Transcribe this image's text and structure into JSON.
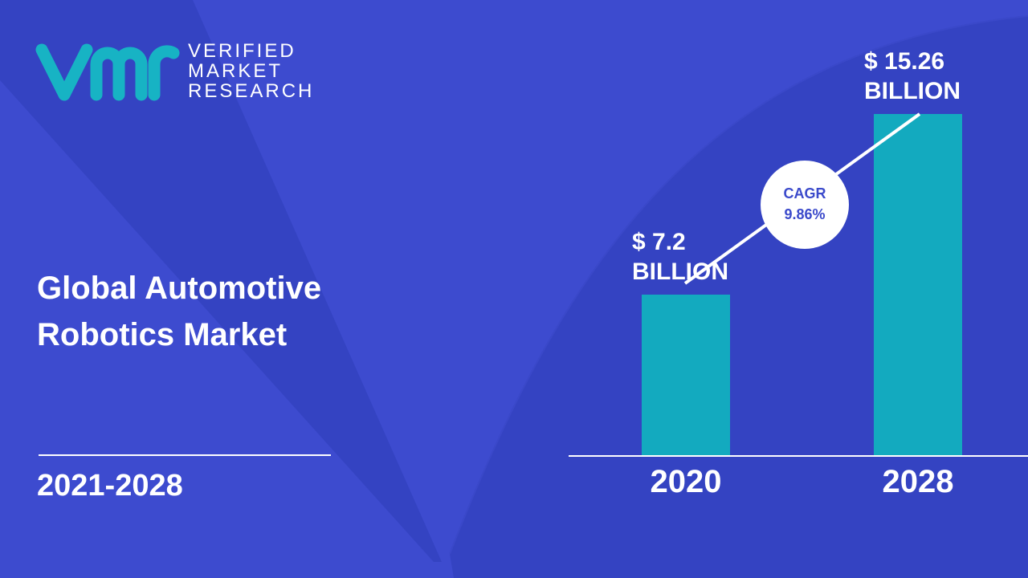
{
  "logo": {
    "lines": [
      "VERIFIED",
      "MARKET",
      "RESEARCH"
    ]
  },
  "title": "Global Automotive Robotics Market",
  "period": "2021-2028",
  "chart_data": {
    "type": "bar",
    "categories": [
      "2020",
      "2028"
    ],
    "values": [
      7.2,
      15.26
    ],
    "value_labels": [
      "$ 7.2 BILLION",
      "$ 15.26 BILLION"
    ],
    "color": "#13aabf",
    "annotations": [
      "CAGR",
      "9.86%"
    ]
  }
}
